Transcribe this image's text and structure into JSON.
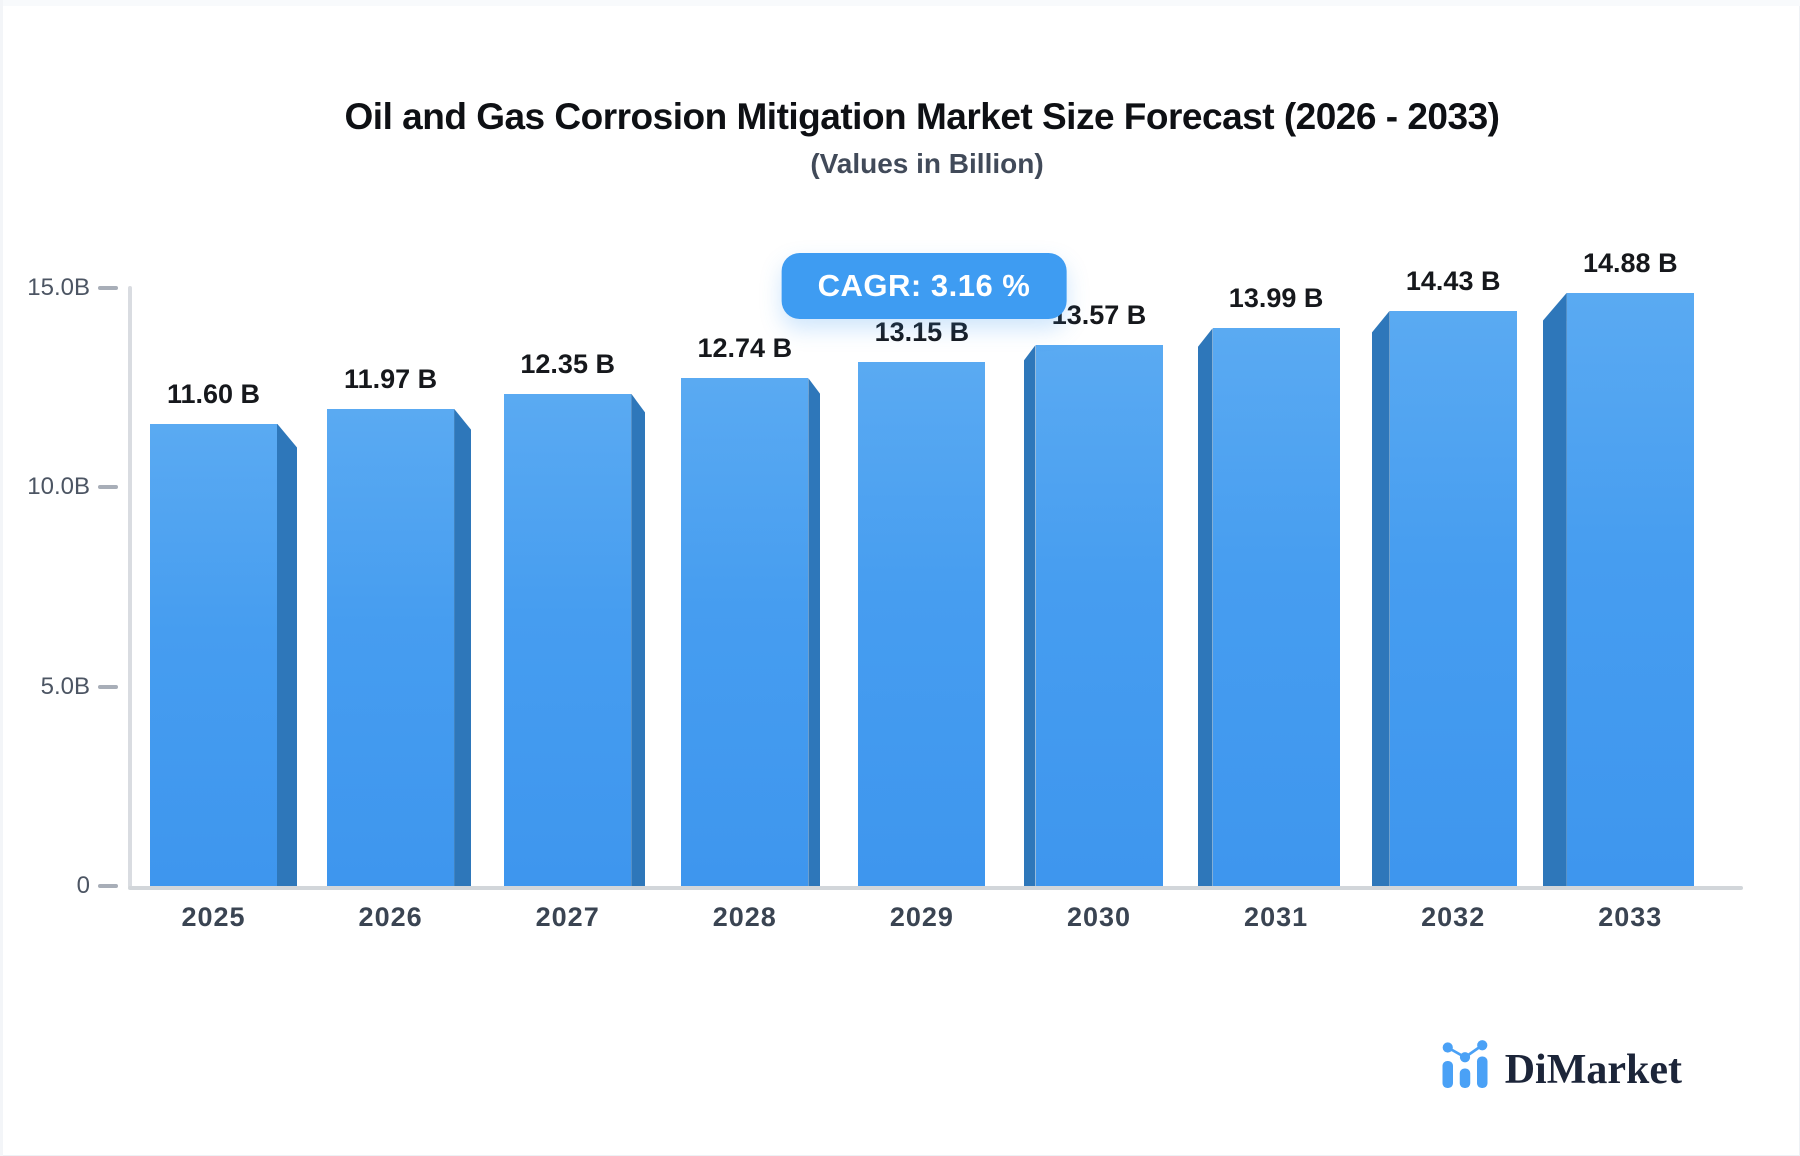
{
  "page": {
    "title": "Oil and Gas Corrosion Mitigation Market Size Forecast (2026 - 2033)",
    "subtitle": "(Values in Billion)"
  },
  "cagr_badge": {
    "label": "CAGR: 3.16 %"
  },
  "chart_data": {
    "type": "bar",
    "title": "Oil and Gas Corrosion Mitigation Market Size Forecast (2026 - 2033)",
    "subtitle": "(Values in Billion)",
    "categories": [
      "2025",
      "2026",
      "2027",
      "2028",
      "2029",
      "2030",
      "2031",
      "2032",
      "2033"
    ],
    "values": [
      11.6,
      11.97,
      12.35,
      12.74,
      13.15,
      13.57,
      13.99,
      14.43,
      14.88
    ],
    "value_labels": [
      "11.60 B",
      "11.97 B",
      "12.35 B",
      "12.74 B",
      "13.15 B",
      "13.57 B",
      "13.99 B",
      "14.43 B",
      "14.88 B"
    ],
    "xlabel": "",
    "ylabel": "",
    "ylim": [
      0,
      15
    ],
    "y_ticks": [
      {
        "value": 0,
        "label": "0"
      },
      {
        "value": 5,
        "label": "5.0B"
      },
      {
        "value": 10,
        "label": "10.0B"
      },
      {
        "value": 15,
        "label": "15.0B"
      }
    ],
    "grid": false,
    "legend": false,
    "annotation": "CAGR: 3.16 %",
    "style": "pseudo-3d bars with center vanishing point",
    "colors": {
      "bar_face_top": "#5aaaf2",
      "bar_face_bottom": "#3e96ee",
      "bar_side": "#2e77ba",
      "badge_bg": "#3e9cf2",
      "badge_text": "#ffffff",
      "axis_line": "#d9dce1",
      "tick_text": "#4c5563",
      "value_text": "#16181c",
      "title_text": "#0e1014",
      "subtitle_text": "#414a59"
    }
  },
  "footer": {
    "logo_text": "DiMarket",
    "logo_icon": "bar-chart-with-trend-dots-icon"
  }
}
